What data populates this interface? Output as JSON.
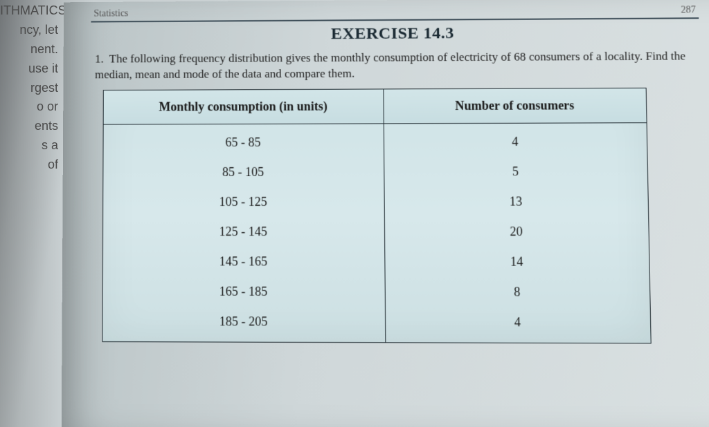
{
  "page_number_hint": "287",
  "chapter_hint": "Statistics",
  "bleed_words": [
    "ITHMATICS",
    "ncy, let",
    "nent.",
    "use it",
    "rgest",
    "o or",
    "ents",
    "s a",
    "",
    "of"
  ],
  "title": "EXERCISE 14.3",
  "question": {
    "number": "1.",
    "text": "The following frequency distribution gives the monthly consumption of electricity of 68 consumers of a locality. Find the median, mean and mode of the data and compare them."
  },
  "table": {
    "type": "table",
    "columns": [
      "Monthly consumption (in units)",
      "Number of consumers"
    ],
    "rows": [
      [
        "65 - 85",
        "4"
      ],
      [
        "85 - 105",
        "5"
      ],
      [
        "105 - 125",
        "13"
      ],
      [
        "125 - 145",
        "20"
      ],
      [
        "145 - 165",
        "14"
      ],
      [
        "165 - 185",
        "8"
      ],
      [
        "185 - 205",
        "4"
      ]
    ],
    "border_color": "#1f2a30",
    "background_color": "#d2e5e8",
    "header_fontsize": 18,
    "cell_fontsize": 18,
    "col_widths_pct": [
      52,
      48
    ]
  },
  "colors": {
    "page_bg": "#d6dcde",
    "title_color": "#1b2a33",
    "text_color": "#232323"
  }
}
